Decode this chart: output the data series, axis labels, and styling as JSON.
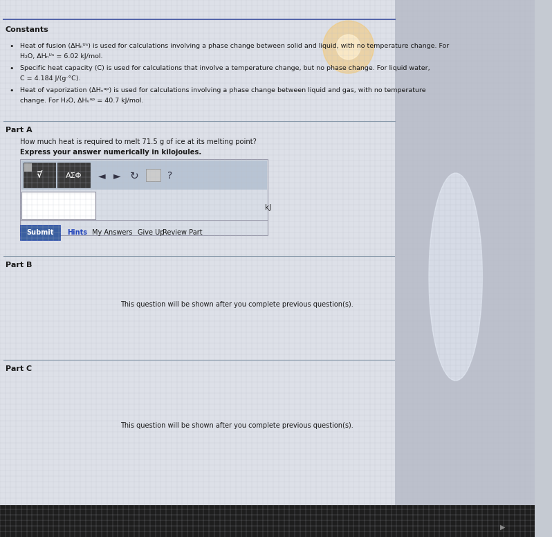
{
  "bg_color": "#c5cad2",
  "panel_color": "#d4d9e2",
  "title_constants": "Constants",
  "bullet1_line1": "Heat of fusion (ΔHₙᵁˢ) is used for calculations involving a phase change between solid and liquid, with no temperature change. For",
  "bullet1_line2": "H₂O, ΔHₙᵁˢ = 6.02 kJ/mol.",
  "bullet2_line1": "Specific heat capacity (C) is used for calculations that involve a temperature change, but no phase change. For liquid water,",
  "bullet2_line2": "C = 4.184 J/(g·°C).",
  "bullet3_line1": "Heat of vaporization (ΔHᵥᵃᵖ) is used for calculations involving a phase change between liquid and gas, with no temperature",
  "bullet3_line2": "change. For H₂O, ΔHᵥᵃᵖ = 40.7 kJ/mol.",
  "part_a_label": "Part A",
  "part_a_question": "How much heat is required to melt 71.5 g of ice at its melting point?",
  "part_a_instruction": "Express your answer numerically in kilojoules.",
  "unit_label": "kJ",
  "submit_label": "Submit",
  "hints_label": "Hints",
  "my_answers": "My Answers",
  "give_up": "Give Up",
  "review_part": "Review Part",
  "part_b_label": "Part B",
  "part_b_msg": "This question will be shown after you complete previous question(s).",
  "part_c_label": "Part C",
  "part_c_msg": "This question will be shown after you complete previous question(s).",
  "text_color": "#1a1a1a",
  "submit_bg": "#3a5fa0",
  "submit_text": "#ffffff",
  "hints_color": "#2244bb",
  "input_box_color": "#ffffff",
  "toolbar_strip_bg": "#8a9ab0",
  "toolbar_icon1_bg": "#4a4a4a",
  "toolbar_icon2_bg": "#4a4a4a",
  "input_area_bg": "#d4d9e2",
  "divider_color": "#8899aa",
  "top_line_color": "#5566aa",
  "grid_line_color": "#b8bec8",
  "right_edge_color": "#aab0bc"
}
